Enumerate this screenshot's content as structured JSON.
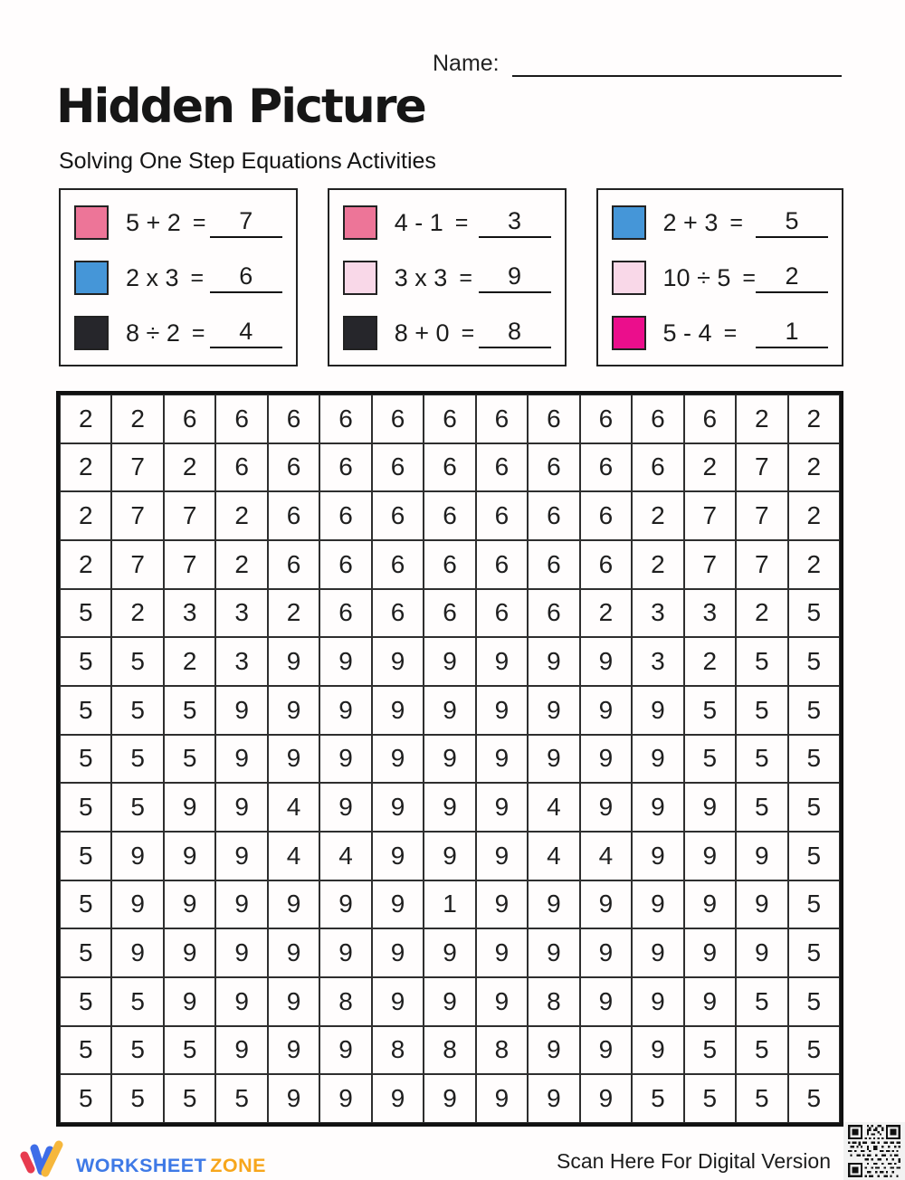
{
  "page": {
    "name_label": "Name:",
    "title": "Hidden Picture",
    "subtitle": "Solving One Step Equations Activities"
  },
  "legend": {
    "boxes": [
      {
        "rows": [
          {
            "color": "#ed7598",
            "color_name": "pink",
            "expr": "5 + 2",
            "eq": "=",
            "answer": "7"
          },
          {
            "color": "#4596d8",
            "color_name": "blue",
            "expr": "2 x 3",
            "eq": "=",
            "answer": "6"
          },
          {
            "color": "#26262b",
            "color_name": "black",
            "expr": "8 ÷ 2",
            "eq": "=",
            "answer": "4"
          }
        ]
      },
      {
        "rows": [
          {
            "color": "#ed7598",
            "color_name": "pink",
            "expr": "4 - 1",
            "eq": "=",
            "answer": "3"
          },
          {
            "color": "#f9d8e8",
            "color_name": "light-pink",
            "expr": "3 x 3",
            "eq": "=",
            "answer": "9"
          },
          {
            "color": "#26262b",
            "color_name": "black",
            "expr": "8 + 0",
            "eq": "=",
            "answer": "8"
          }
        ]
      },
      {
        "rows": [
          {
            "color": "#4596d8",
            "color_name": "blue",
            "expr": "2 + 3",
            "eq": "=",
            "answer": "5"
          },
          {
            "color": "#f9d8e8",
            "color_name": "light-pink",
            "expr": "10 ÷ 5",
            "eq": "=",
            "answer": "2"
          },
          {
            "color": "#eb0e8c",
            "color_name": "magenta",
            "expr": "5 - 4",
            "eq": "=",
            "answer": "1"
          }
        ]
      }
    ]
  },
  "grid": {
    "rows": [
      [
        2,
        2,
        6,
        6,
        6,
        6,
        6,
        6,
        6,
        6,
        6,
        6,
        6,
        2,
        2
      ],
      [
        2,
        7,
        2,
        6,
        6,
        6,
        6,
        6,
        6,
        6,
        6,
        6,
        2,
        7,
        2
      ],
      [
        2,
        7,
        7,
        2,
        6,
        6,
        6,
        6,
        6,
        6,
        6,
        2,
        7,
        7,
        2
      ],
      [
        2,
        7,
        7,
        2,
        6,
        6,
        6,
        6,
        6,
        6,
        6,
        2,
        7,
        7,
        2
      ],
      [
        5,
        2,
        3,
        3,
        2,
        6,
        6,
        6,
        6,
        6,
        2,
        3,
        3,
        2,
        5
      ],
      [
        5,
        5,
        2,
        3,
        9,
        9,
        9,
        9,
        9,
        9,
        9,
        3,
        2,
        5,
        5
      ],
      [
        5,
        5,
        5,
        9,
        9,
        9,
        9,
        9,
        9,
        9,
        9,
        9,
        5,
        5,
        5
      ],
      [
        5,
        5,
        5,
        9,
        9,
        9,
        9,
        9,
        9,
        9,
        9,
        9,
        5,
        5,
        5
      ],
      [
        5,
        5,
        9,
        9,
        4,
        9,
        9,
        9,
        9,
        4,
        9,
        9,
        9,
        5,
        5
      ],
      [
        5,
        9,
        9,
        9,
        4,
        4,
        9,
        9,
        9,
        4,
        4,
        9,
        9,
        9,
        5
      ],
      [
        5,
        9,
        9,
        9,
        9,
        9,
        9,
        1,
        9,
        9,
        9,
        9,
        9,
        9,
        5
      ],
      [
        5,
        9,
        9,
        9,
        9,
        9,
        9,
        9,
        9,
        9,
        9,
        9,
        9,
        9,
        5
      ],
      [
        5,
        5,
        9,
        9,
        9,
        8,
        9,
        9,
        9,
        8,
        9,
        9,
        9,
        5,
        5
      ],
      [
        5,
        5,
        5,
        9,
        9,
        9,
        8,
        8,
        8,
        9,
        9,
        9,
        5,
        5,
        5
      ],
      [
        5,
        5,
        5,
        5,
        9,
        9,
        9,
        9,
        9,
        9,
        9,
        5,
        5,
        5,
        5
      ]
    ]
  },
  "footer": {
    "brand_part1": "WORKSHEET",
    "brand_part2": "ZONE",
    "scan_text": "Scan Here For Digital Version",
    "logo_colors": {
      "red": "#e73b4f",
      "blue": "#3e6de8",
      "yellow": "#f6b73c"
    }
  }
}
